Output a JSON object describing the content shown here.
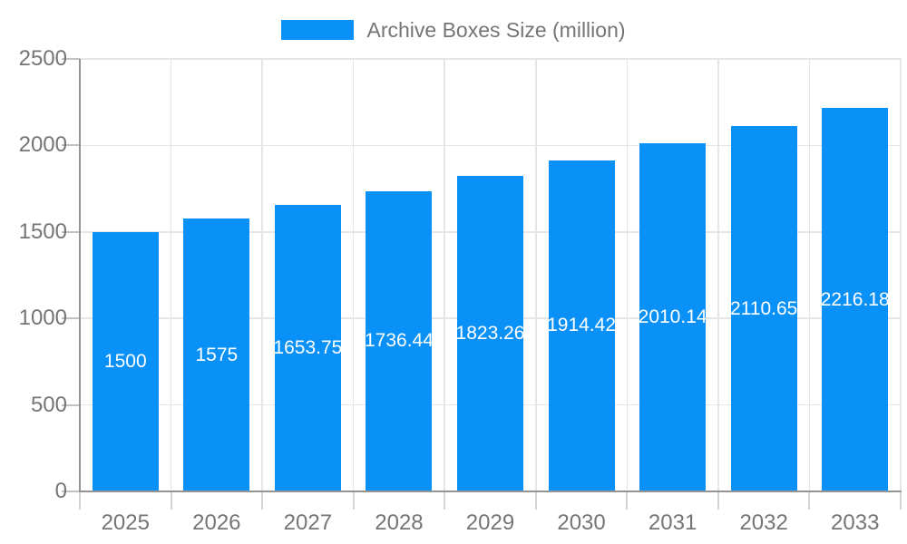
{
  "chart_data": {
    "type": "bar",
    "title": "Archive Boxes Size (million)",
    "series": [
      {
        "name": "Archive Boxes Size (million)",
        "values": [
          1500,
          1575,
          1653.75,
          1736.44,
          1823.26,
          1914.42,
          2010.14,
          2110.65,
          2216.18
        ],
        "value_labels": [
          "1500",
          "1575",
          "1653.75",
          "1736.44",
          "1823.26",
          "1914.42",
          "2010.14",
          "2110.65",
          "2216.18"
        ]
      }
    ],
    "categories": [
      "2025",
      "2026",
      "2027",
      "2028",
      "2029",
      "2030",
      "2031",
      "2032",
      "2033"
    ],
    "xlabel": "",
    "ylabel": "",
    "ylim": [
      0,
      2500
    ],
    "yticks": [
      0,
      500,
      1000,
      1500,
      2000,
      2500
    ],
    "ytick_labels": [
      "0",
      "500",
      "1000",
      "1500",
      "2000",
      "2500"
    ],
    "grid": true,
    "legend_position": "top",
    "colors": {
      "bar": "#0a91f8",
      "bar_value_label": "#ffffff",
      "axis_text": "#757575",
      "grid": "#e6e6e6",
      "axis_line": "#949494"
    }
  }
}
